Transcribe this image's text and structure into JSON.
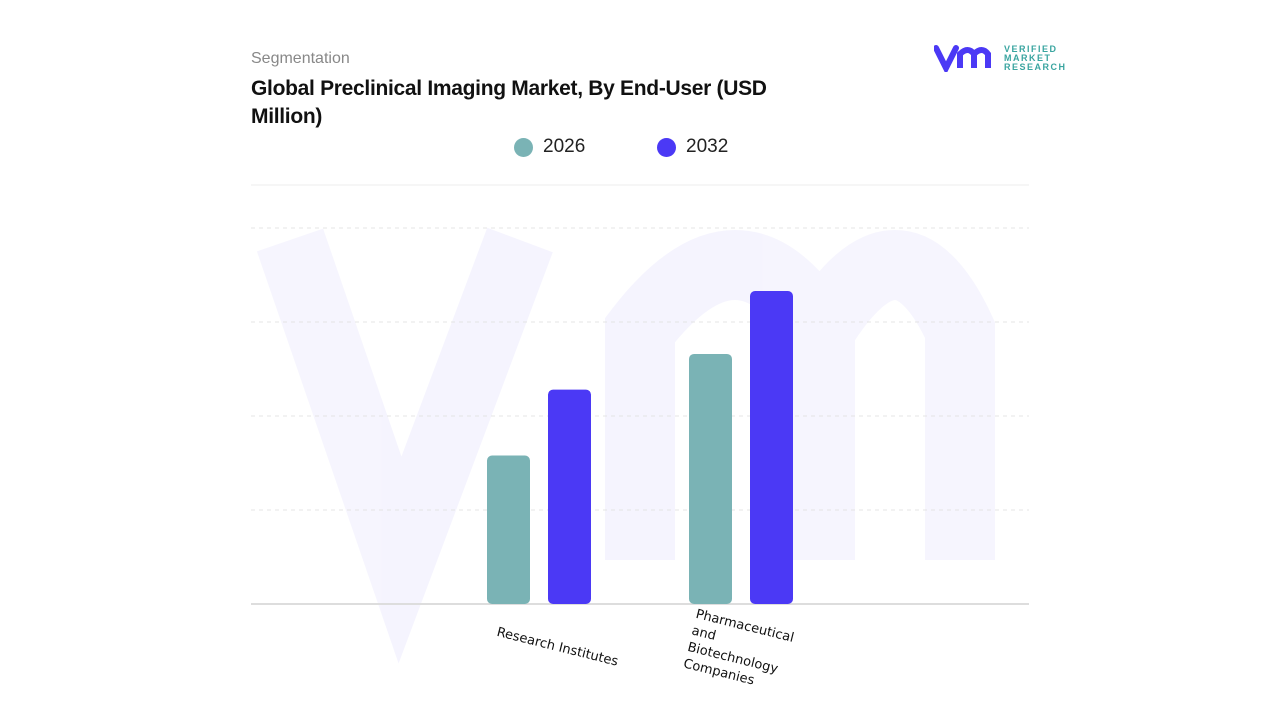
{
  "header": {
    "segment_label": "Segmentation",
    "title": "Global Preclinical Imaging Market, By End-User (USD Million)"
  },
  "logo": {
    "line1": "VERIFIED",
    "line2": "MARKET",
    "line3": "RESEARCH"
  },
  "chart_data": {
    "type": "bar",
    "title": "Global Preclinical Imaging Market, By End-User (USD Million)",
    "categories": [
      "Research Institutes",
      "Pharmaceutical and Biotechnology Companies"
    ],
    "series": [
      {
        "name": "2026",
        "color": "#7ab3b5",
        "values": [
          1.58,
          2.66
        ]
      },
      {
        "name": "2032",
        "color": "#4b39f5",
        "values": [
          2.28,
          3.33
        ]
      }
    ],
    "ylim": [
      0,
      4.5
    ],
    "y_ticks_labeled": false,
    "grid": true,
    "legend": "top-center",
    "note": "values in relative units; no y-axis labels shown"
  }
}
